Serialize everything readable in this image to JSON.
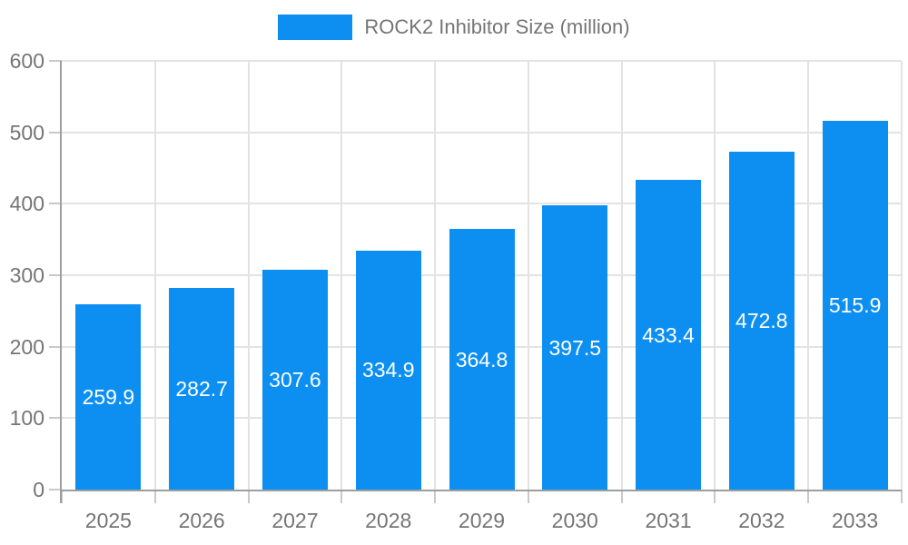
{
  "chart_data": {
    "type": "bar",
    "title": "ROCK2 Inhibitor Size (million)",
    "categories": [
      "2025",
      "2026",
      "2027",
      "2028",
      "2029",
      "2030",
      "2031",
      "2032",
      "2033"
    ],
    "values": [
      259.9,
      282.7,
      307.6,
      334.9,
      364.8,
      397.5,
      433.4,
      472.8,
      515.9
    ],
    "value_labels": [
      "259.9",
      "282.7",
      "307.6",
      "334.9",
      "364.8",
      "397.5",
      "433.4",
      "472.8",
      "515.9"
    ],
    "xlabel": "",
    "ylabel": "",
    "ylim": [
      0,
      600
    ],
    "yticks": [
      0,
      100,
      200,
      300,
      400,
      500,
      600
    ],
    "grid": true,
    "legend_position": "top",
    "colors": {
      "bar": "#0d8ff2",
      "grid": "#e3e3e3",
      "axis": "#9e9e9e",
      "tick": "#c9c9c9",
      "text": "#757575",
      "bar_label": "#ffffff",
      "background": "#ffffff"
    }
  }
}
